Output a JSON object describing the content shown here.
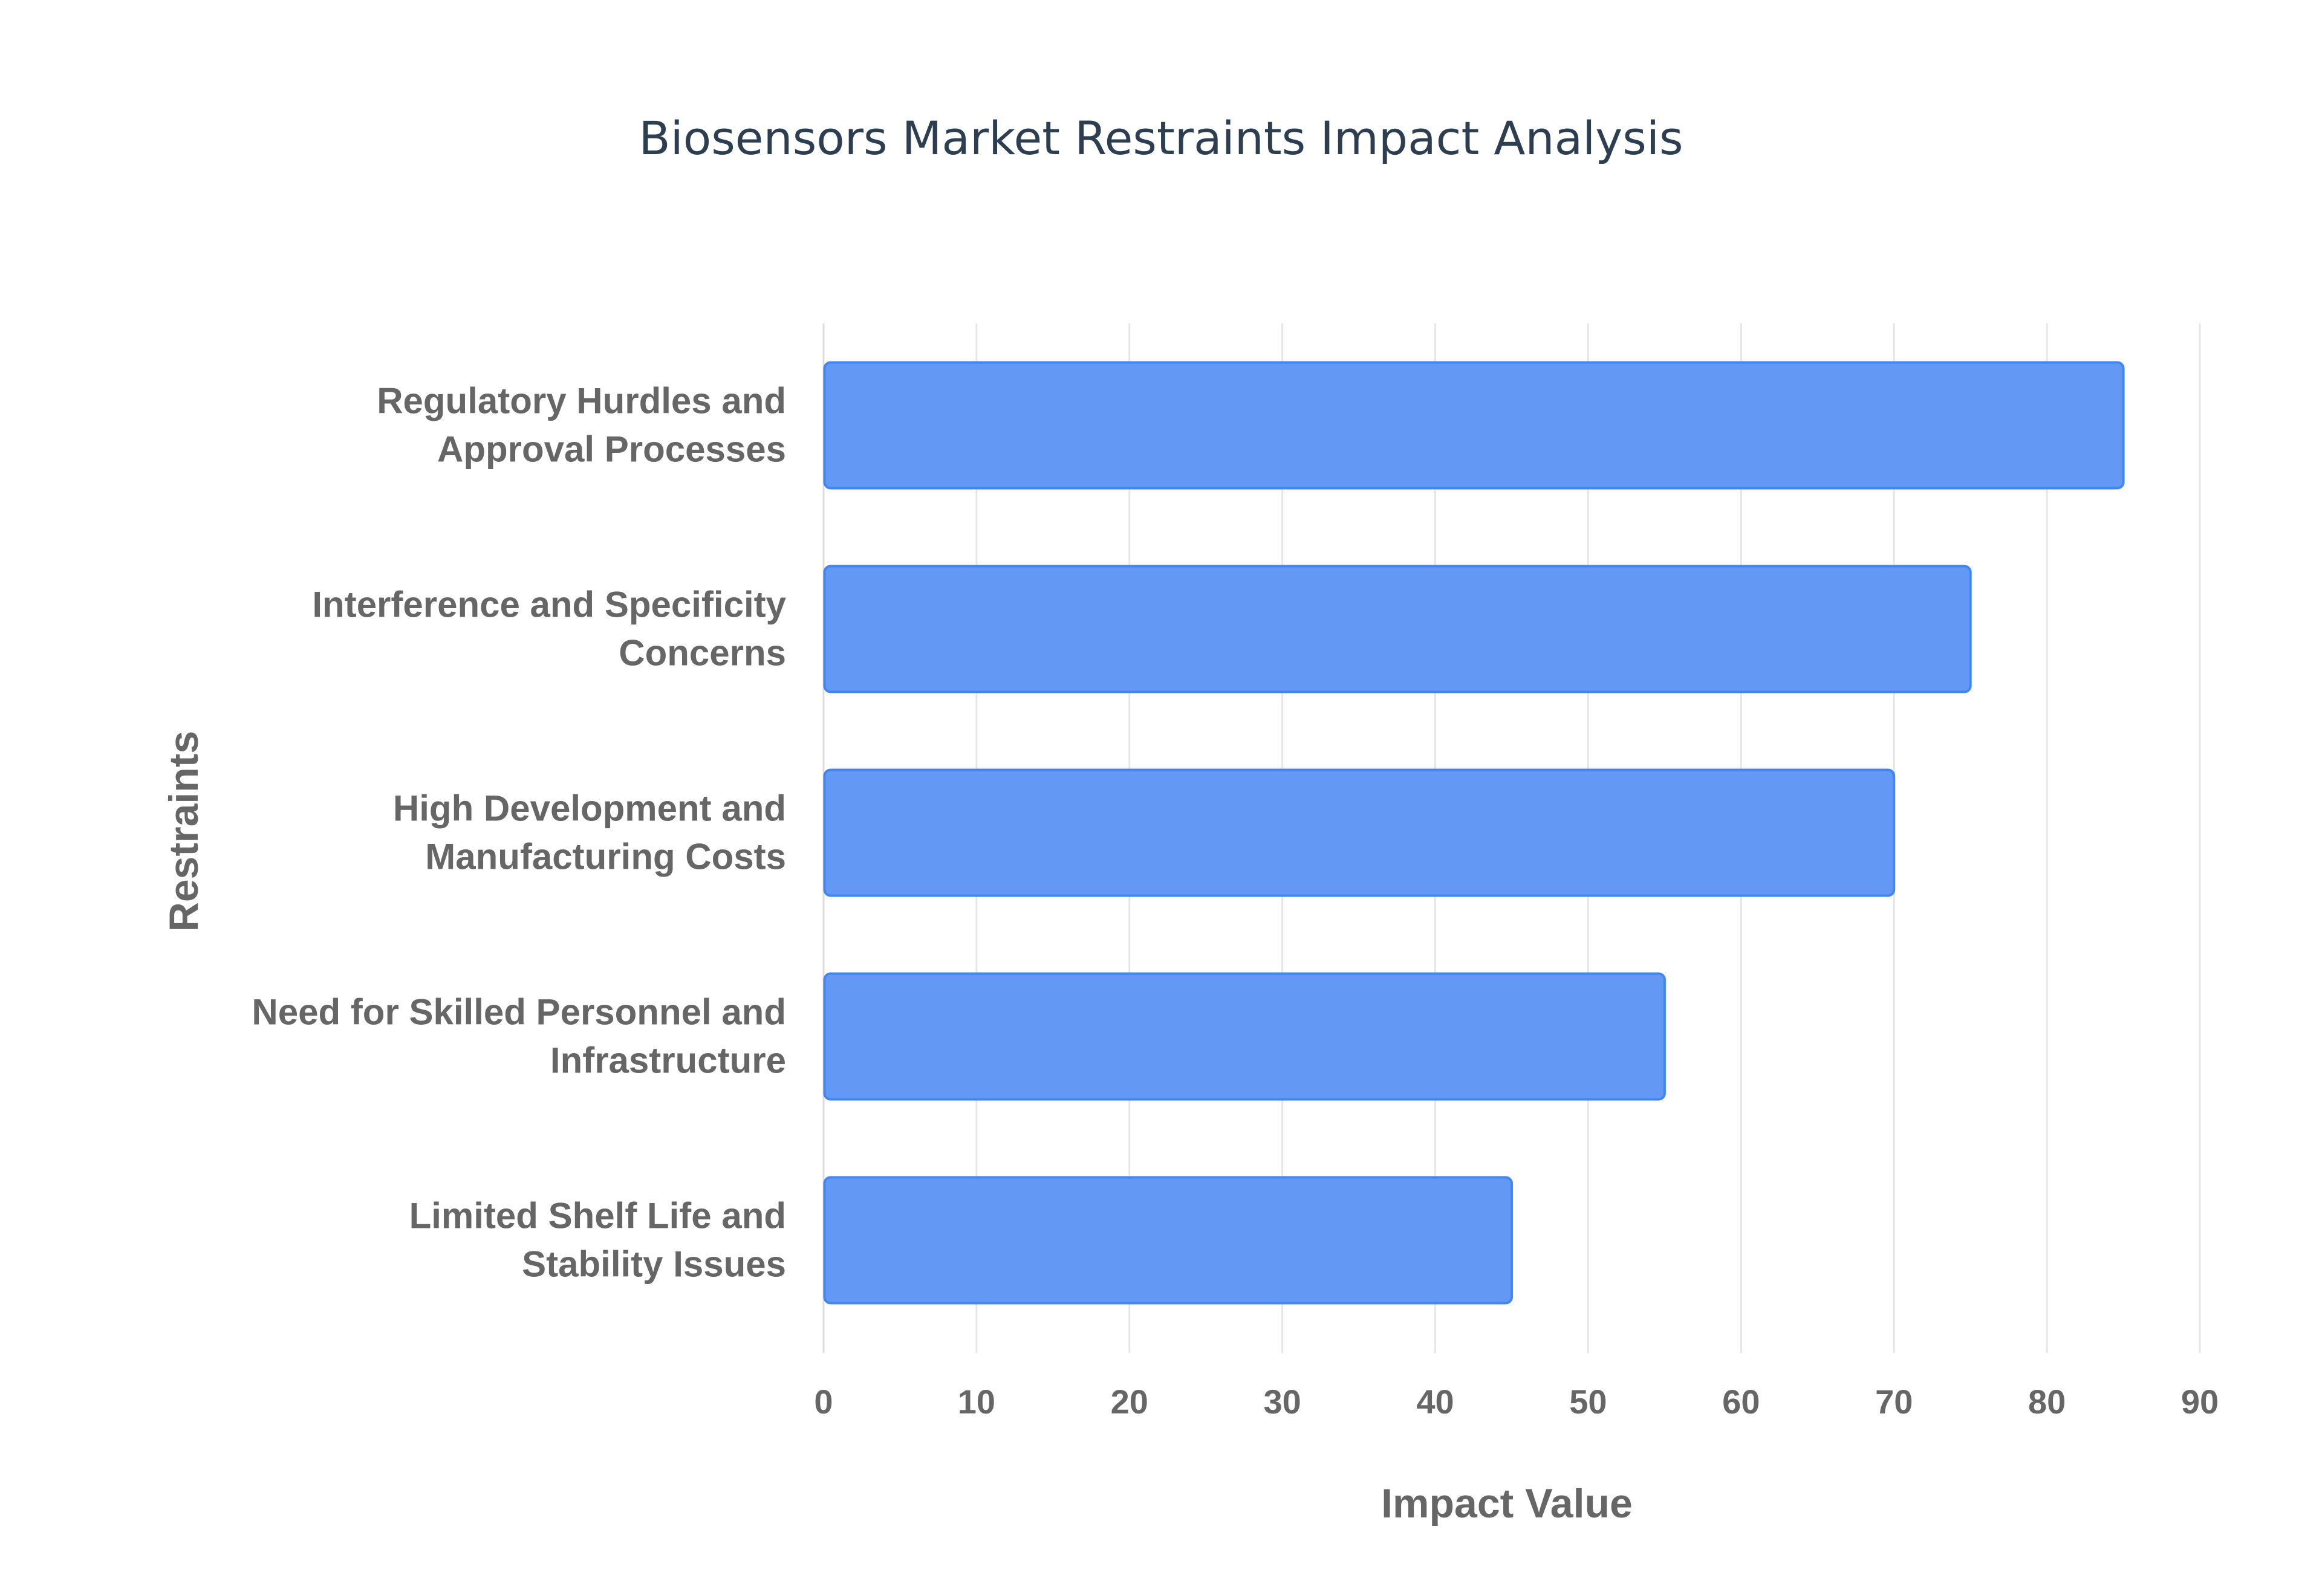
{
  "chart_data": {
    "type": "bar",
    "orientation": "horizontal",
    "title": "Biosensors Market Restraints Impact Analysis",
    "xlabel": "Impact Value",
    "ylabel": "Restraints",
    "categories": [
      [
        "Regulatory Hurdles and",
        "Approval Processes"
      ],
      [
        "Interference and Specificity",
        "Concerns"
      ],
      [
        "High Development and",
        "Manufacturing Costs"
      ],
      [
        "Need for Skilled Personnel and",
        "Infrastructure"
      ],
      [
        "Limited Shelf Life and",
        "Stability Issues"
      ]
    ],
    "values": [
      85,
      75,
      70,
      55,
      45
    ],
    "xlim": [
      0,
      90
    ],
    "xticks": [
      0,
      10,
      20,
      30,
      40,
      50,
      60,
      70,
      80,
      90
    ],
    "grid": true,
    "bar_color": "#4285f4",
    "bar_fill": "#6399f5",
    "legend": "none"
  }
}
